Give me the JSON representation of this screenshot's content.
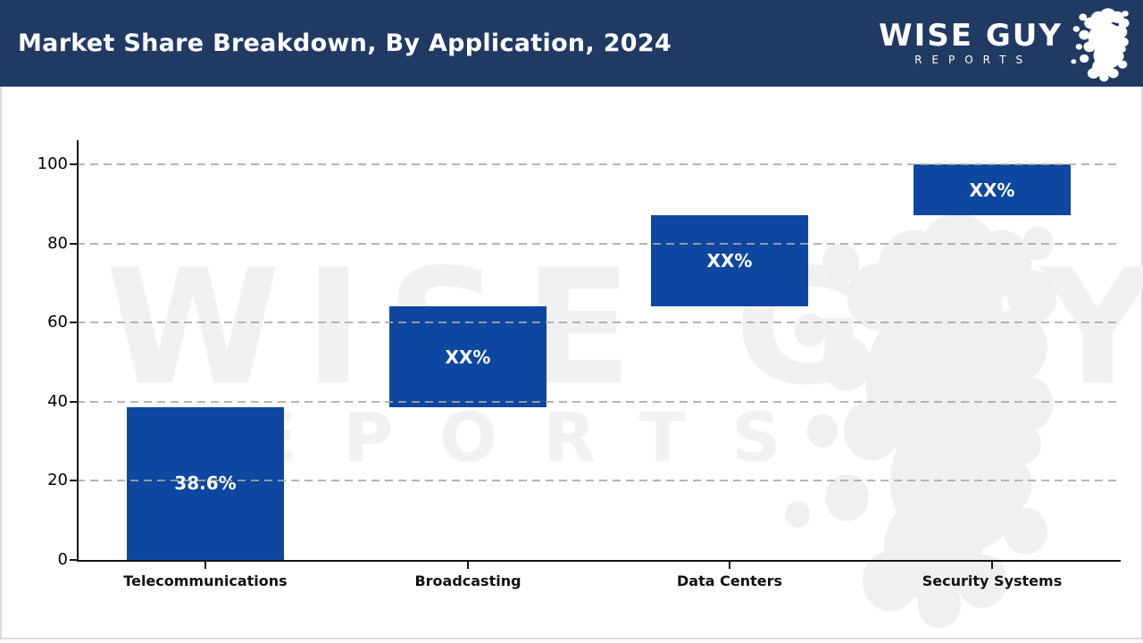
{
  "header": {
    "title": "Market Share Breakdown, By Application, 2024",
    "brand": {
      "line1": "WISE GUY",
      "line2": "REPORTS"
    },
    "colors": {
      "background": "#213a64",
      "text": "#ffffff"
    }
  },
  "watermark": {
    "line1": "WISE GUY",
    "line2": "REPORTS"
  },
  "chart_data": {
    "type": "bar",
    "subtype": "waterfall",
    "title": "Market Share Breakdown, By Application, 2024",
    "categories": [
      "Telecommunications",
      "Broadcasting",
      "Data Centers",
      "Security Systems"
    ],
    "segments": [
      {
        "category": "Telecommunications",
        "start": 0,
        "end": 38.6,
        "label": "38.6%"
      },
      {
        "category": "Broadcasting",
        "start": 38.6,
        "end": 64.1,
        "label": "XX%"
      },
      {
        "category": "Data Centers",
        "start": 64.1,
        "end": 87.1,
        "label": "XX%"
      },
      {
        "category": "Security Systems",
        "start": 87.1,
        "end": 100,
        "label": "XX%"
      }
    ],
    "xlabel": "",
    "ylabel": "",
    "ylim": [
      0,
      100
    ],
    "yticks": [
      0,
      20,
      40,
      60,
      80,
      100
    ],
    "grid": "horizontal-dashed",
    "legend_position": "none",
    "bar_color": "#0d479f",
    "bar_label_color": "#ffffff",
    "gridline_color": "#a8a8a8",
    "axis_color": "#141414"
  }
}
